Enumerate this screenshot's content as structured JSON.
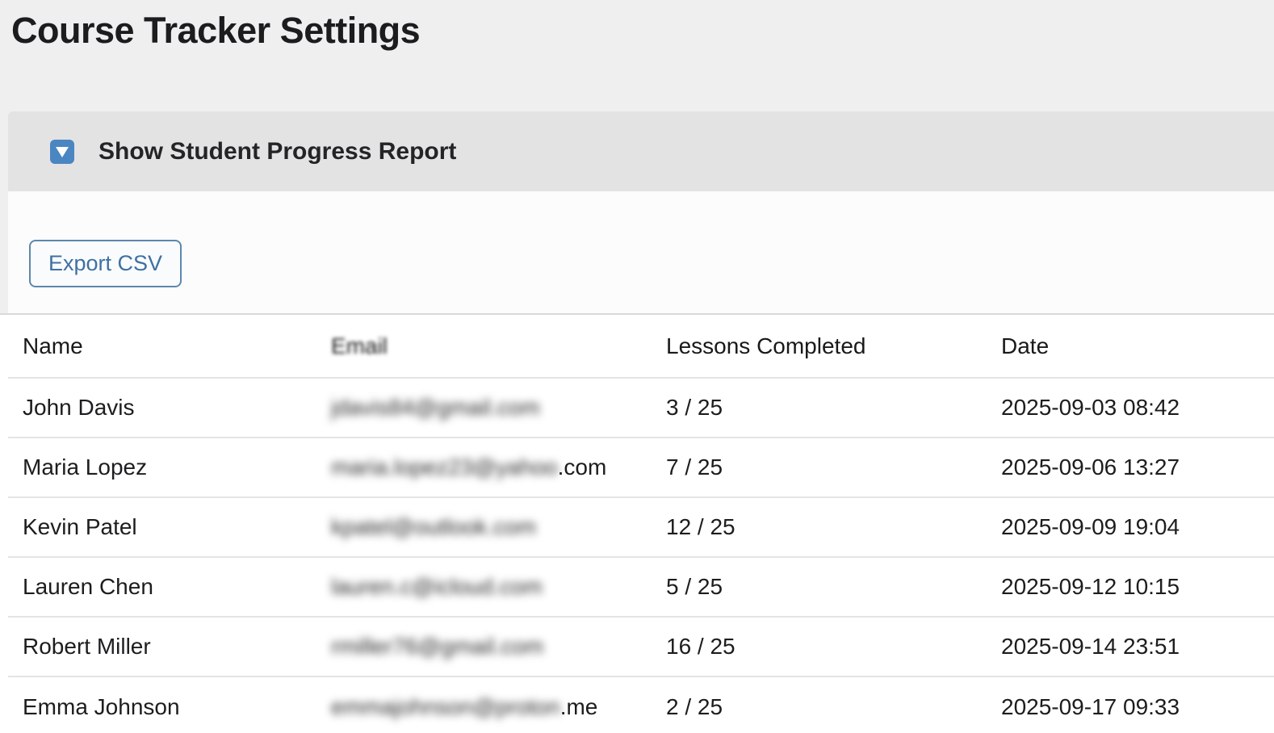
{
  "page": {
    "title": "Course Tracker Settings"
  },
  "accordion": {
    "label": "Show Student Progress Report",
    "icon": "triangle-down-icon",
    "icon_color": "#4a86c1"
  },
  "toolbar": {
    "export_label": "Export CSV"
  },
  "table": {
    "columns": [
      {
        "key": "name",
        "label": "Name"
      },
      {
        "key": "email",
        "label": "Email",
        "redacted": true
      },
      {
        "key": "lessons",
        "label": "Lessons Completed"
      },
      {
        "key": "date",
        "label": "Date"
      }
    ],
    "rows": [
      {
        "name": "John Davis",
        "email_blur": "jdavis84@gmail.com",
        "email_clear": "",
        "lessons": "3 / 25",
        "date": "2025-09-03 08:42"
      },
      {
        "name": "Maria Lopez",
        "email_blur": "maria.lopez23@yahoo",
        "email_clear": ".com",
        "lessons": "7 / 25",
        "date": "2025-09-06 13:27"
      },
      {
        "name": "Kevin Patel",
        "email_blur": "kpatel@outlook.com",
        "email_clear": "",
        "lessons": "12 / 25",
        "date": "2025-09-09 19:04"
      },
      {
        "name": "Lauren Chen",
        "email_blur": "lauren.c@icloud.com",
        "email_clear": "",
        "lessons": "5 / 25",
        "date": "2025-09-12 10:15"
      },
      {
        "name": "Robert Miller",
        "email_blur": "rmiller76@gmail.com",
        "email_clear": "",
        "lessons": "16 / 25",
        "date": "2025-09-14 23:51"
      },
      {
        "name": "Emma Johnson",
        "email_blur": "emmajohnson@proton",
        "email_clear": ".me",
        "lessons": "2 / 25",
        "date": "2025-09-17 09:33"
      }
    ]
  },
  "colors": {
    "page_background": "#efeff0",
    "accordion_background": "#e3e3e4",
    "accent_blue": "#4a86c1",
    "button_text": "#3e70a4",
    "button_border": "#5e87ad",
    "row_border": "#e4e4e6",
    "text": "#1d1d1f"
  }
}
